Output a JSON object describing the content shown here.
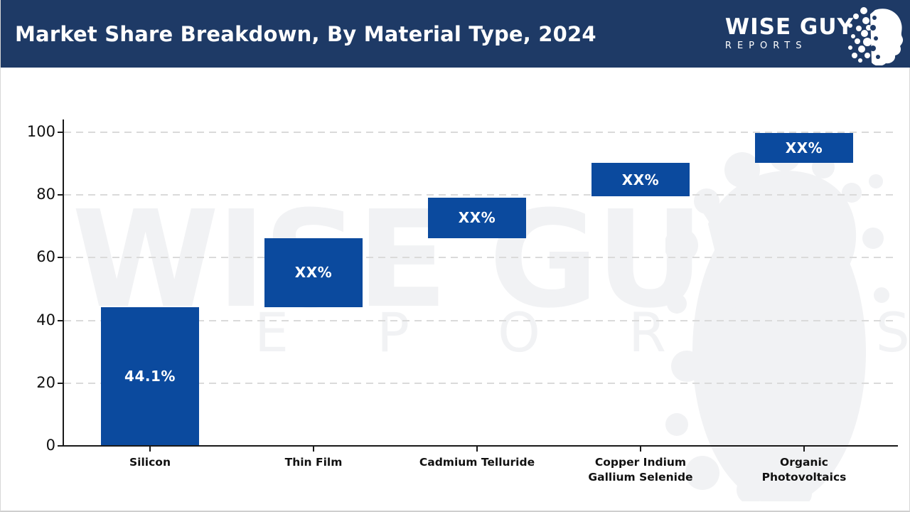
{
  "header": {
    "title": "Market Share Breakdown, By Material Type, 2024",
    "bg_color": "#1e3a66"
  },
  "logo": {
    "line1": "WISE GUY",
    "line2": "REPORTS"
  },
  "watermark": {
    "line1": "WISE GUY",
    "line2": "R E P O R T S"
  },
  "chart_data": {
    "type": "bar",
    "subtype": "waterfall",
    "title": "Market Share Breakdown, By Material Type, 2024",
    "categories": [
      "Silicon",
      "Thin Film",
      "Cadmium Telluride",
      "Copper Indium\nGallium Selenide",
      "Organic\nPhotovoltaics"
    ],
    "bars": [
      {
        "category": "Silicon",
        "start": 0,
        "end": 44.1,
        "label": "44.1%"
      },
      {
        "category": "Thin Film",
        "start": 44,
        "end": 66,
        "label": "XX%"
      },
      {
        "category": "Cadmium Telluride",
        "start": 66,
        "end": 79,
        "label": "XX%"
      },
      {
        "category": "Copper Indium\nGallium Selenide",
        "start": 79.3,
        "end": 90,
        "label": "XX%"
      },
      {
        "category": "Organic\nPhotovoltaics",
        "start": 90,
        "end": 99.5,
        "label": "XX%"
      }
    ],
    "yticks": [
      0,
      20,
      40,
      60,
      80,
      100
    ],
    "ylim": [
      0,
      104
    ],
    "xlabel": "",
    "ylabel": "",
    "grid": "horizontal-dashed",
    "legend": "none",
    "bar_color": "#0b4a9e",
    "bar_label_color": "#ffffff",
    "axis_color": "#1a1a1a"
  }
}
